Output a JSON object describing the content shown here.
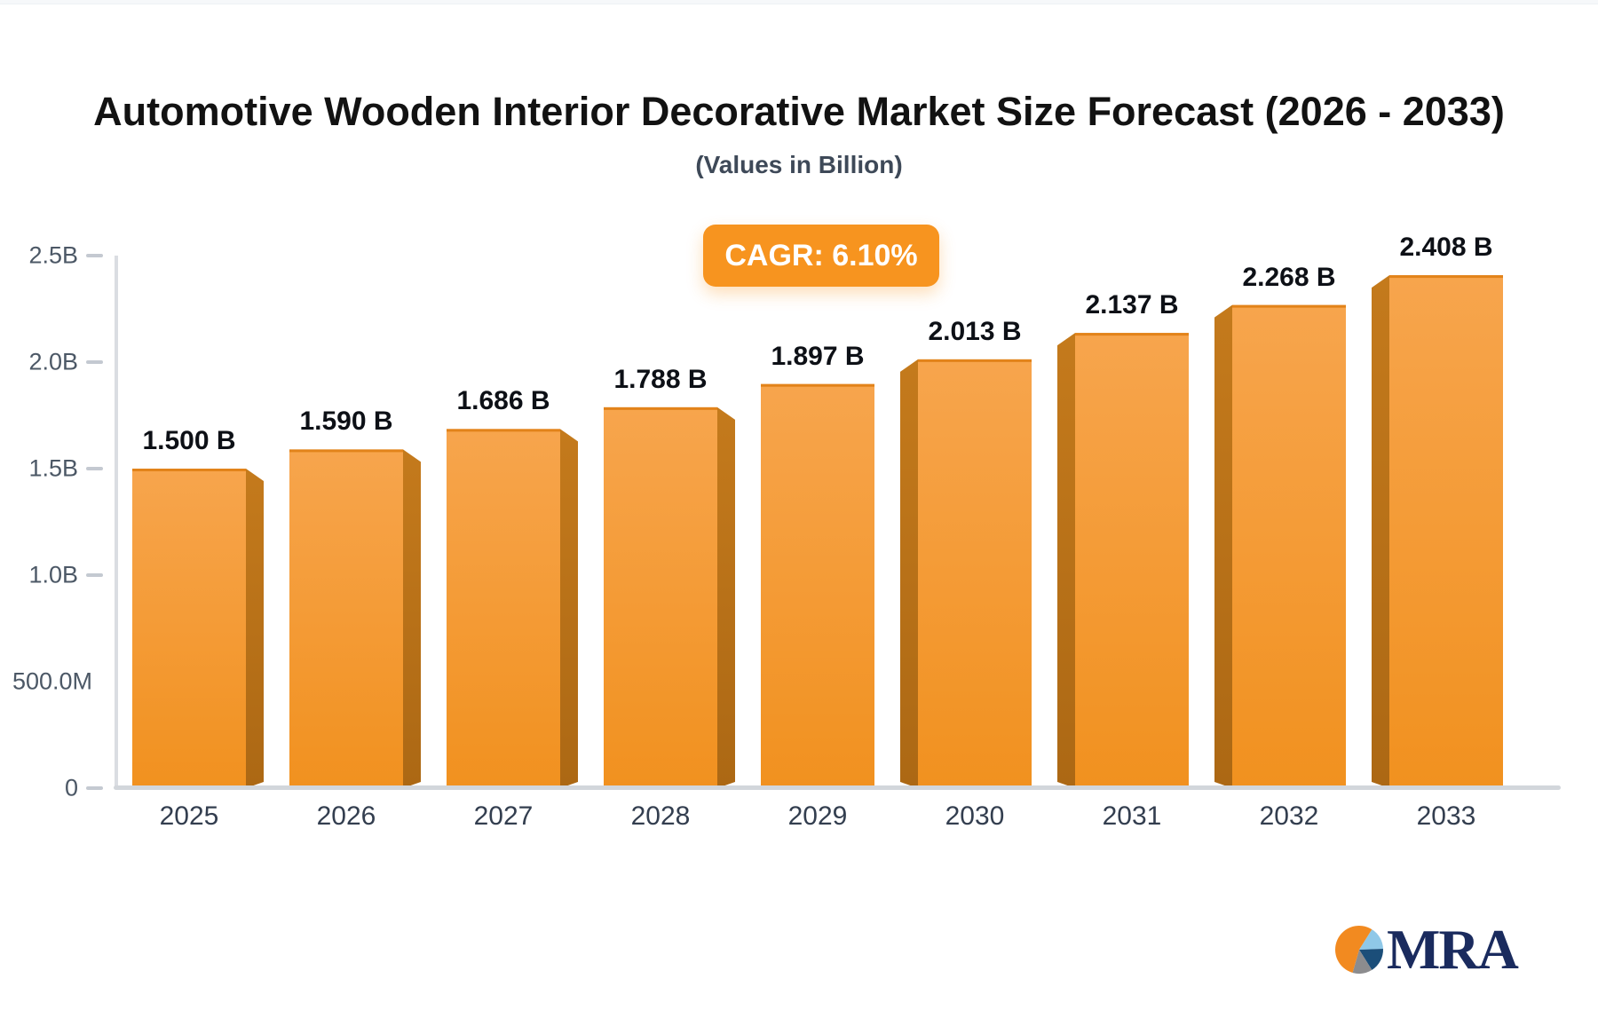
{
  "header": {
    "title": "Automotive Wooden Interior Decorative Market Size Forecast (2026 - 2033)",
    "subtitle": "(Values in Billion)"
  },
  "badge": {
    "label": "CAGR: 6.10%",
    "color": "#F7941F",
    "text_color": "#ffffff"
  },
  "chart_data": {
    "type": "bar",
    "title": "Automotive Wooden Interior Decorative Market Size Forecast (2026 - 2033)",
    "subtitle": "(Values in Billion)",
    "xlabel": "",
    "ylabel": "",
    "unit": "Billion",
    "categories": [
      "2025",
      "2026",
      "2027",
      "2028",
      "2029",
      "2030",
      "2031",
      "2032",
      "2033"
    ],
    "values": [
      1.5,
      1.59,
      1.686,
      1.788,
      1.897,
      2.013,
      2.137,
      2.268,
      2.408
    ],
    "value_labels": [
      "1.500 B",
      "1.590 B",
      "1.686 B",
      "1.788 B",
      "1.897 B",
      "2.013 B",
      "2.137 B",
      "2.268 B",
      "2.408 B"
    ],
    "ylim": [
      0,
      2.5
    ],
    "grid": false,
    "legend": "none",
    "y_ticks": [
      {
        "label": "0",
        "value": 0,
        "dash": true
      },
      {
        "label": "500.0M",
        "value": 0.5,
        "dash": false
      },
      {
        "label": "1.0B",
        "value": 1.0,
        "dash": true
      },
      {
        "label": "1.5B",
        "value": 1.5,
        "dash": true
      },
      {
        "label": "2.0B",
        "value": 2.0,
        "dash": true
      },
      {
        "label": "2.5B",
        "value": 2.5,
        "dash": true
      }
    ],
    "colors": {
      "bar_face_top": "#F7A54D",
      "bar_face_bottom": "#F1911F",
      "bar_face_edge": "#E2831A",
      "bar_side_top": "#C47A1C",
      "bar_side_bottom": "#AC6814",
      "axis_line": "#dadde2",
      "baseline": "#d2d6db",
      "tick_label": "#4c5866",
      "category_label": "#333e4f",
      "value_label": "#0d1016"
    }
  },
  "footer": {
    "logo_text": "MRA",
    "logo_pie_colors": {
      "orange": "#F28A20",
      "light_blue": "#8FC8E8",
      "navy": "#1B4E79",
      "gray": "#8C8C8E"
    }
  }
}
